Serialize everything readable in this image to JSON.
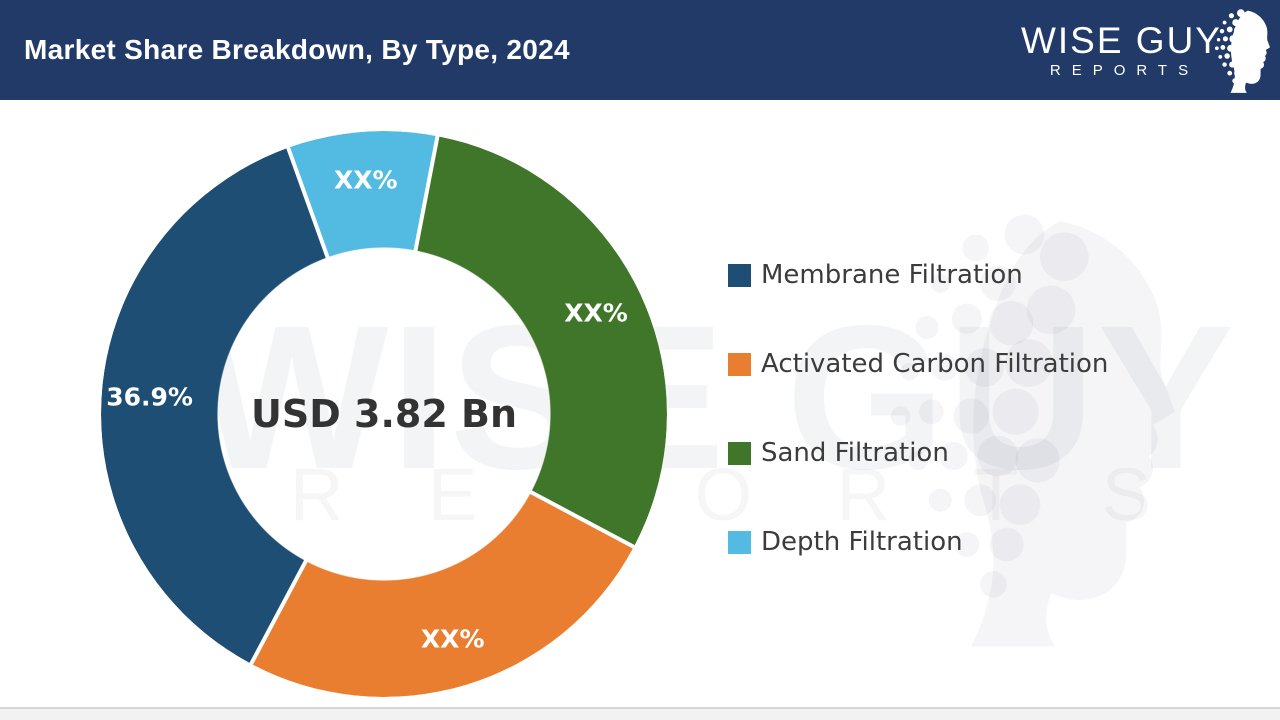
{
  "header": {
    "title": "Market Share Breakdown, By Type, 2024",
    "brand": {
      "line1": "WISE GUY",
      "line2": "REPORTS"
    }
  },
  "watermark": {
    "line1": "WISE GUY",
    "line2": "R E P O R T S"
  },
  "chart_data": {
    "type": "pie",
    "donut": true,
    "title": "Market Share Breakdown, By Type, 2024",
    "center_label": "USD 3.82 Bn",
    "legend_position": "right",
    "series": [
      {
        "name": "Membrane Filtration",
        "label": "36.9%",
        "pct": 36.9,
        "color": "#1f4e74",
        "start_deg": 208,
        "end_deg": 340.2
      },
      {
        "name": "Activated Carbon Filtration",
        "label": "XX%",
        "pct": 25.0,
        "color": "#ea7e30",
        "start_deg": 118,
        "end_deg": 208
      },
      {
        "name": "Sand Filtration",
        "label": "XX%",
        "pct": 29.6,
        "color": "#3f7629",
        "start_deg": 10.9,
        "end_deg": 118
      },
      {
        "name": "Depth Filtration",
        "label": "XX%",
        "pct": 8.5,
        "color": "#53bae2",
        "start_deg": 340.2,
        "end_deg": 370.9
      }
    ]
  },
  "colors": {
    "header_bg": "#213a68",
    "center_text": "#333333",
    "legend_text": "#3c3c3c"
  }
}
